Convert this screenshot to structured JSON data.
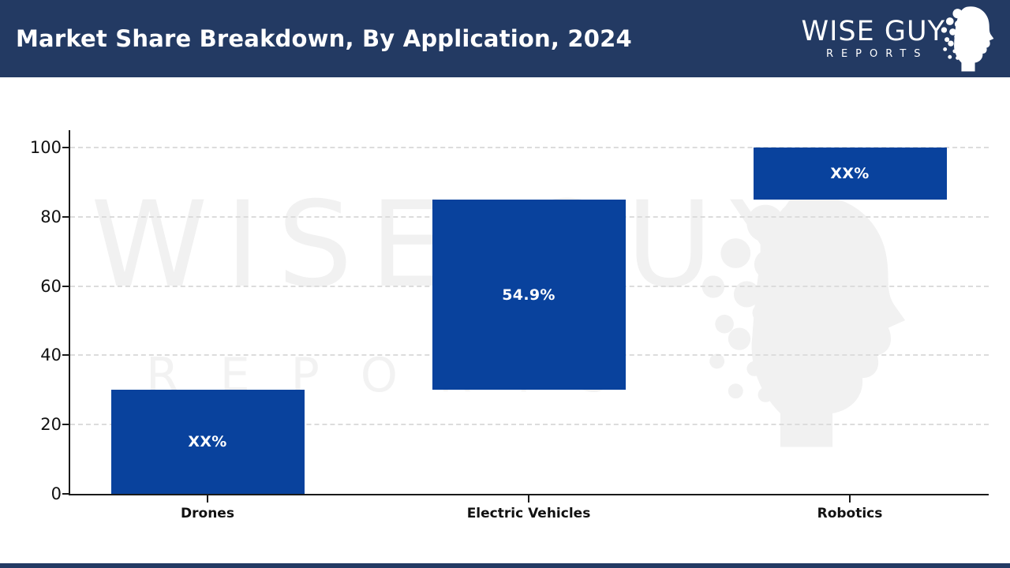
{
  "header": {
    "title": "Market Share Breakdown, By Application, 2024",
    "logo": {
      "line1": "WISE GUY",
      "line2": "REPORTS"
    }
  },
  "watermark": {
    "line1": "WISE GUY",
    "line2": "REPORTS"
  },
  "colors": {
    "header_bg": "#233a63",
    "footer_bg": "#233a63",
    "bar": "#09429d",
    "bar_label_text": "#ffffff",
    "axis": "#1a1a1a",
    "gridline": "#dcdcdc",
    "tick_text": "#111111",
    "watermark": "#f1f1f1"
  },
  "chart_data": {
    "type": "bar",
    "subtype": "floating-segment stacked-share (waterfall-style) bars",
    "title": "Market Share Breakdown, By Application, 2024",
    "categories": [
      "Drones",
      "Electric Vehicles",
      "Robotics"
    ],
    "series": [
      {
        "name": "Market Share (%)",
        "segments": [
          {
            "category": "Drones",
            "start": 0,
            "end": 30,
            "label": "XX%"
          },
          {
            "category": "Electric Vehicles",
            "start": 30,
            "end": 84.9,
            "label": "54.9%"
          },
          {
            "category": "Robotics",
            "start": 84.9,
            "end": 100,
            "label": "XX%"
          }
        ]
      }
    ],
    "xlabel": "",
    "ylabel": "",
    "yticks": [
      0,
      20,
      40,
      60,
      80,
      100
    ],
    "ylim": [
      0,
      105
    ],
    "grid": "horizontal dashed gridlines at y ticks",
    "legend": "none",
    "note": "XX% labels are redacted percentage values; the three segments stack to 100%"
  }
}
